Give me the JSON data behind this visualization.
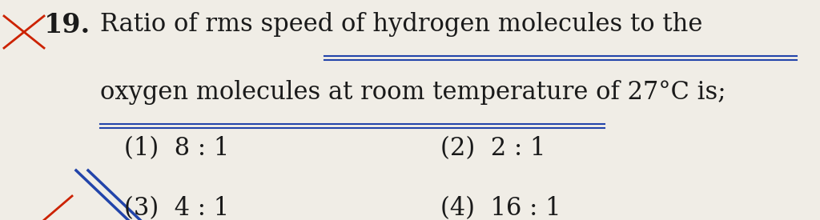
{
  "background_color": "#f0ede6",
  "question_number": "19.",
  "question_line1": "Ratio of rms speed of hydrogen molecules to the",
  "question_line2": "oxygen molecules at room temperature of 27°C is;",
  "options": [
    {
      "label": "(1)",
      "value": "8 : 1"
    },
    {
      "label": "(2)",
      "value": "2 : 1"
    },
    {
      "label": "(3)",
      "value": "4 : 1"
    },
    {
      "label": "(4)",
      "value": "16 : 1"
    }
  ],
  "underline_color": "#2244aa",
  "text_color": "#1a1a1a",
  "number_color": "#1a1a1a",
  "font_size_question": 22,
  "font_size_options": 22,
  "font_size_number": 24,
  "red_mark_color": "#cc2200",
  "blue_mark_color": "#2244aa"
}
